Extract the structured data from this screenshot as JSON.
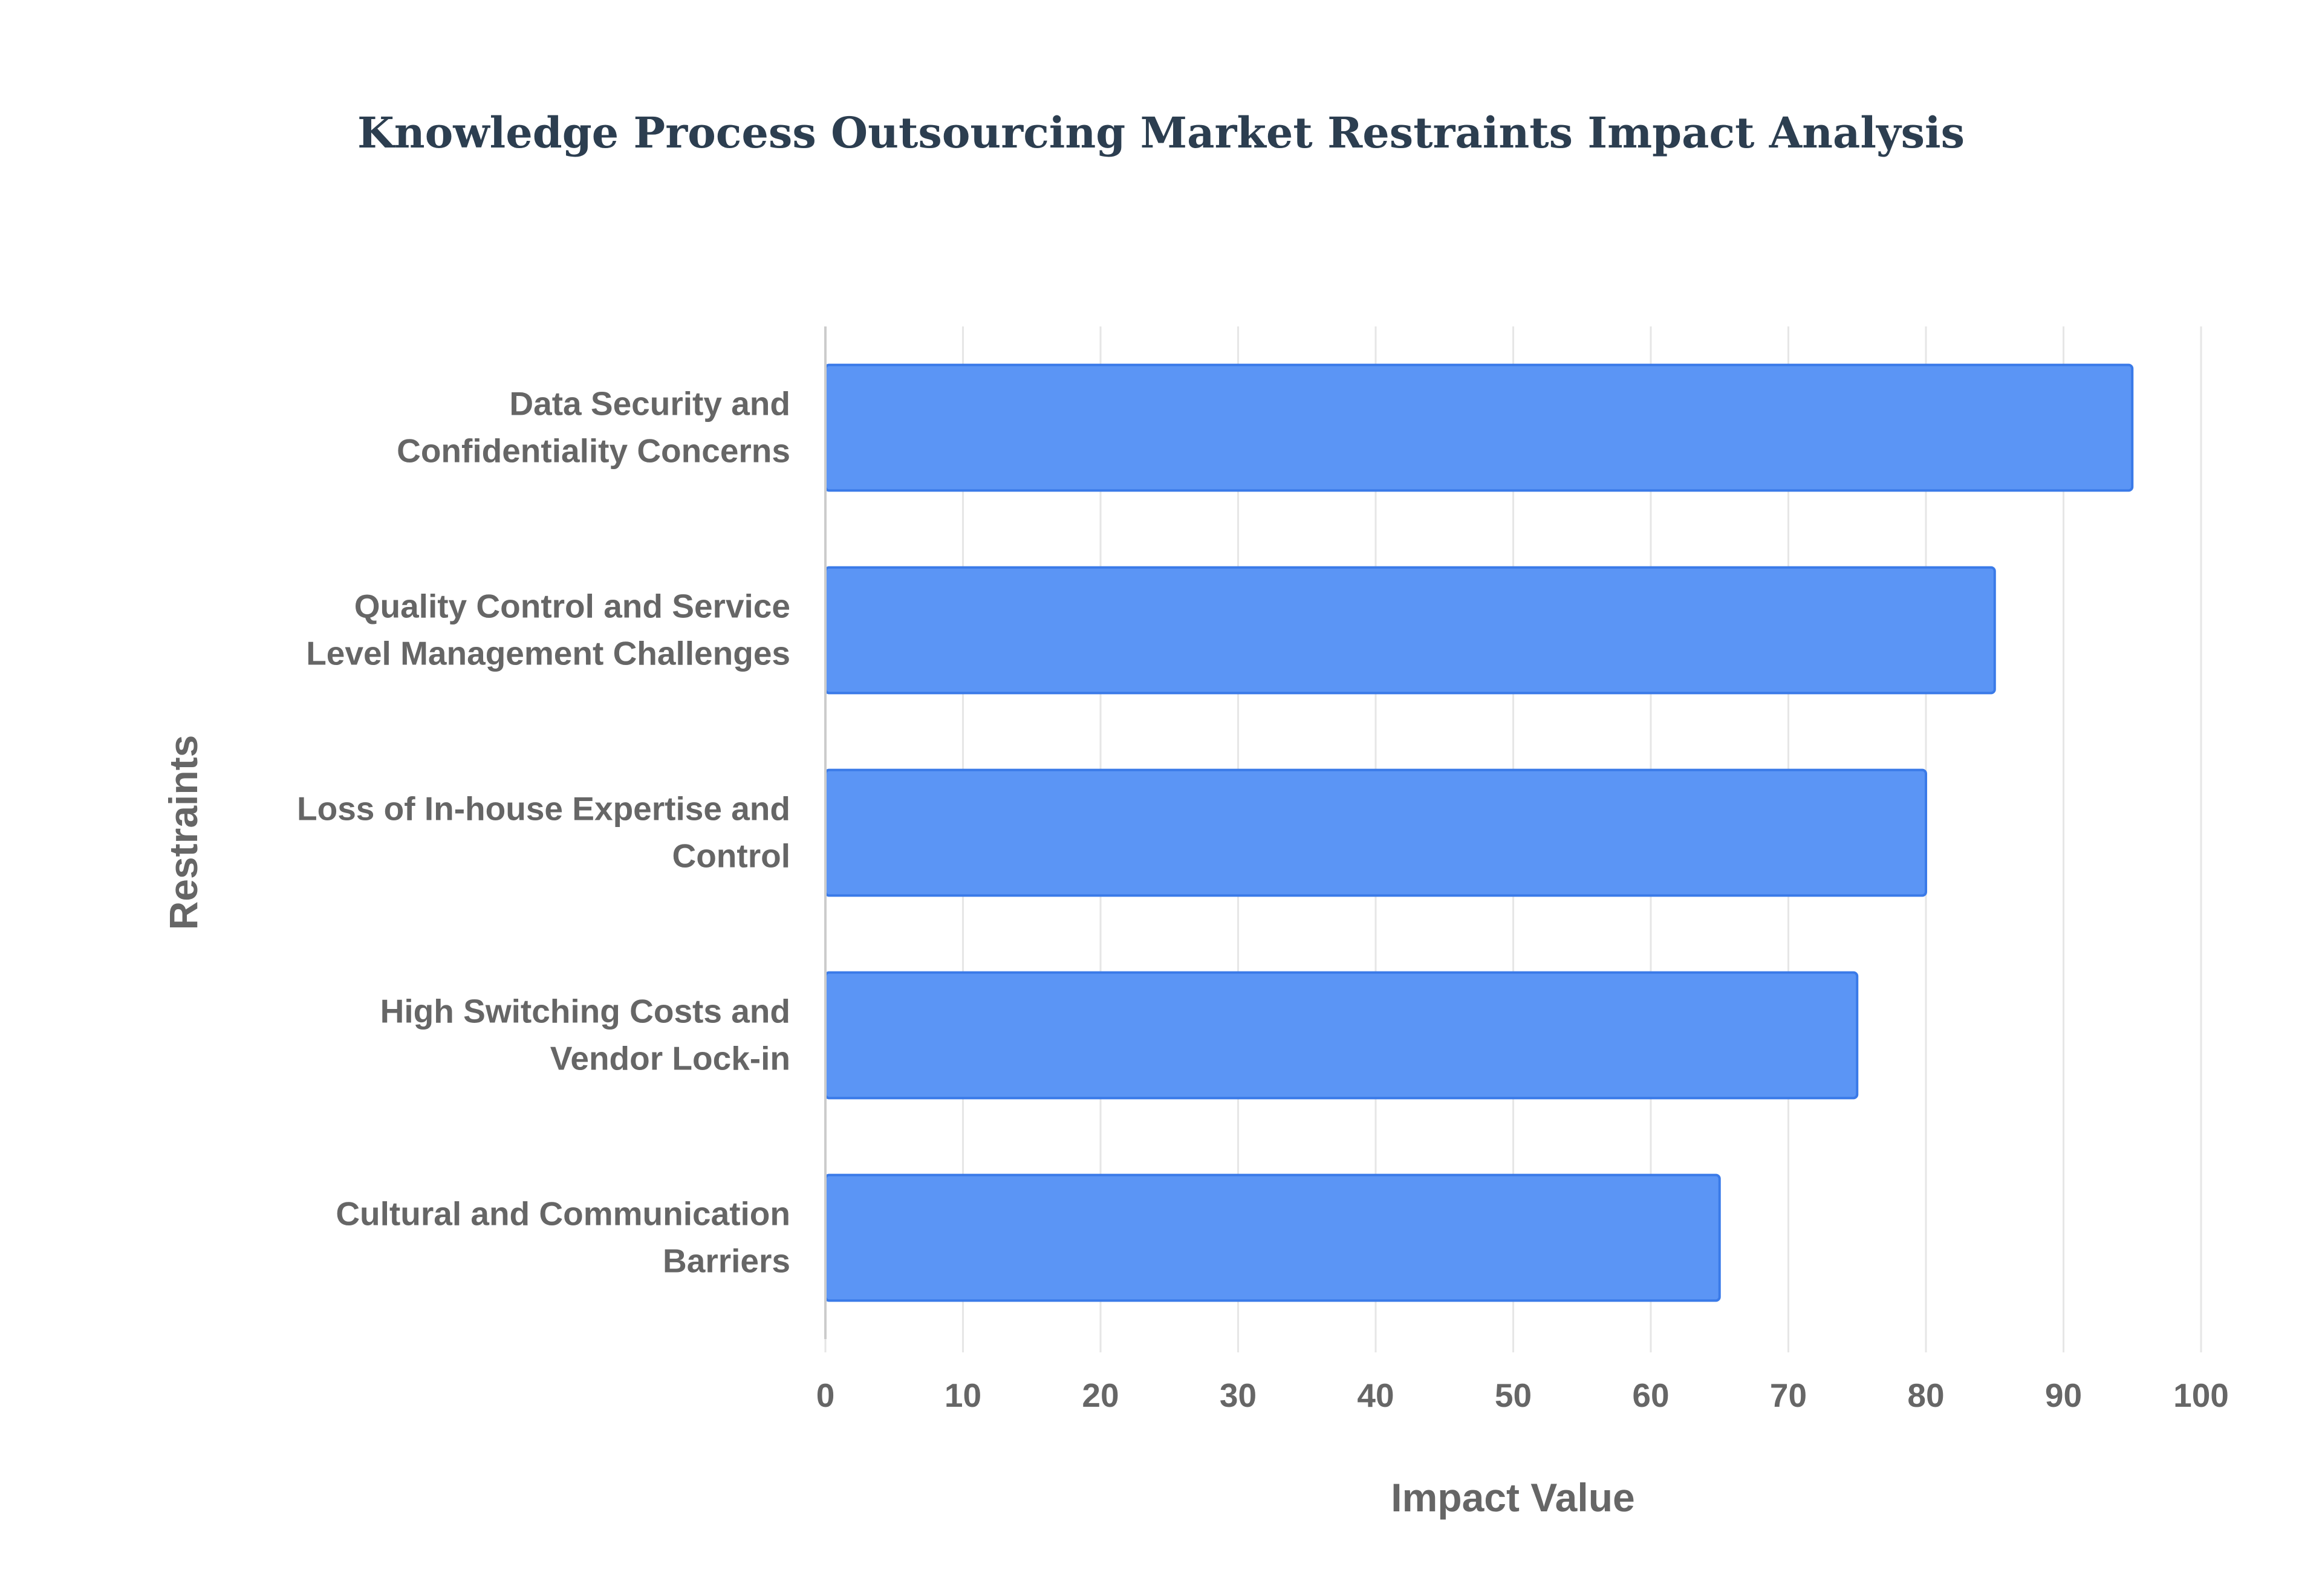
{
  "chart_data": {
    "type": "bar",
    "orientation": "horizontal",
    "title": "Knowledge Process Outsourcing Market Restraints Impact Analysis",
    "xlabel": "Impact Value",
    "ylabel": "Restraints",
    "categories": [
      [
        "Data Security and",
        "Confidentiality Concerns"
      ],
      [
        "Quality Control and Service",
        "Level Management Challenges"
      ],
      [
        "Loss of In-house Expertise and",
        "Control"
      ],
      [
        "High Switching Costs and",
        "Vendor Lock-in"
      ],
      [
        "Cultural and Communication",
        "Barriers"
      ]
    ],
    "values": [
      95,
      85,
      80,
      75,
      65
    ],
    "xlim": [
      0,
      100
    ],
    "xticks": [
      0,
      10,
      20,
      30,
      40,
      50,
      60,
      70,
      80,
      90,
      100
    ],
    "grid": true,
    "legend": "none",
    "colors": {
      "bar_fill": "#5b95f5",
      "bar_stroke": "#3a7ae8",
      "grid": "#e6e6e6",
      "axis": "#cccccc",
      "text": "#666666",
      "title": "#2c3e50"
    }
  }
}
